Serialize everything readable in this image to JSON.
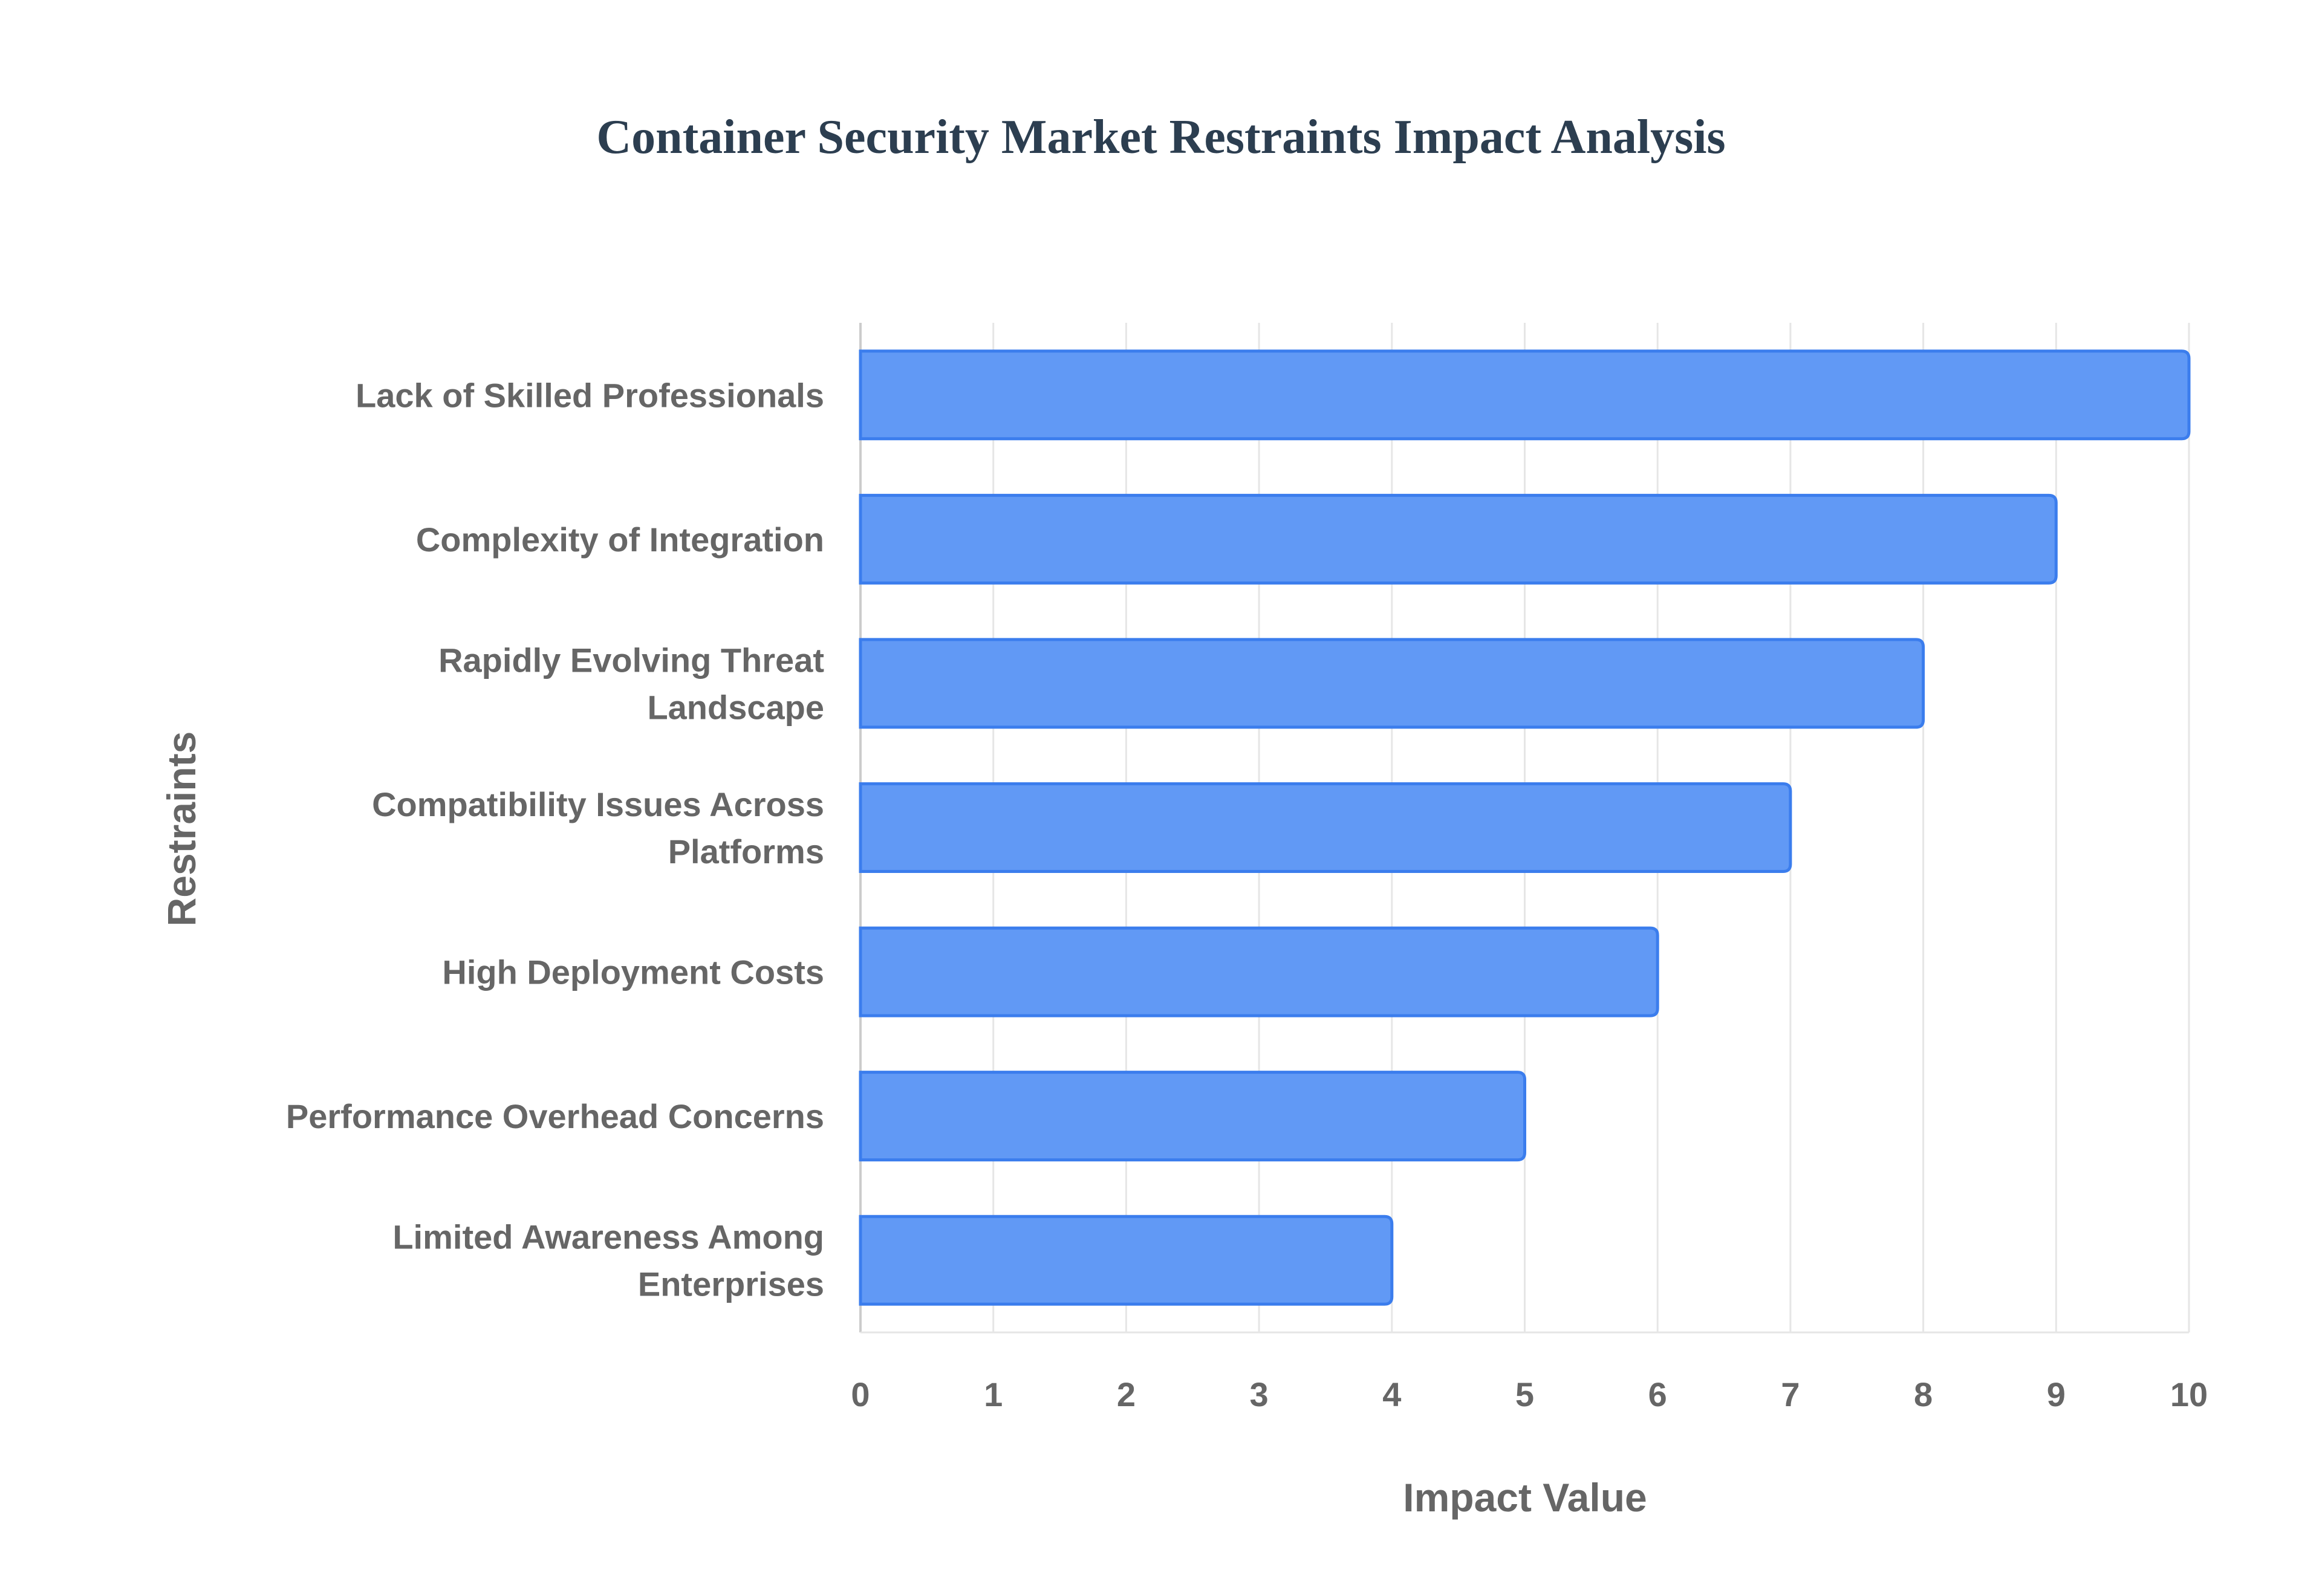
{
  "chart_data": {
    "type": "bar",
    "orientation": "horizontal",
    "title": "Container Security Market Restraints Impact Analysis",
    "xlabel": "Impact Value",
    "ylabel": "Restraints",
    "categories": [
      [
        "Lack of Skilled Professionals"
      ],
      [
        "Complexity of Integration"
      ],
      [
        "Rapidly Evolving Threat",
        "Landscape"
      ],
      [
        "Compatibility Issues Across",
        "Platforms"
      ],
      [
        "High Deployment Costs"
      ],
      [
        "Performance Overhead Concerns"
      ],
      [
        "Limited Awareness Among",
        "Enterprises"
      ]
    ],
    "values": [
      10,
      9,
      8,
      7,
      6,
      5,
      4
    ],
    "xlim": [
      0,
      10
    ],
    "xticks": [
      "0",
      "1",
      "2",
      "3",
      "4",
      "5",
      "6",
      "7",
      "8",
      "9",
      "10"
    ],
    "grid": true,
    "legend": "none",
    "colors": {
      "bar_fill": "#6199f5",
      "bar_stroke": "#3b7ded",
      "grid": "#e6e6e6",
      "text": "#666666",
      "title": "#2c3e50"
    }
  }
}
